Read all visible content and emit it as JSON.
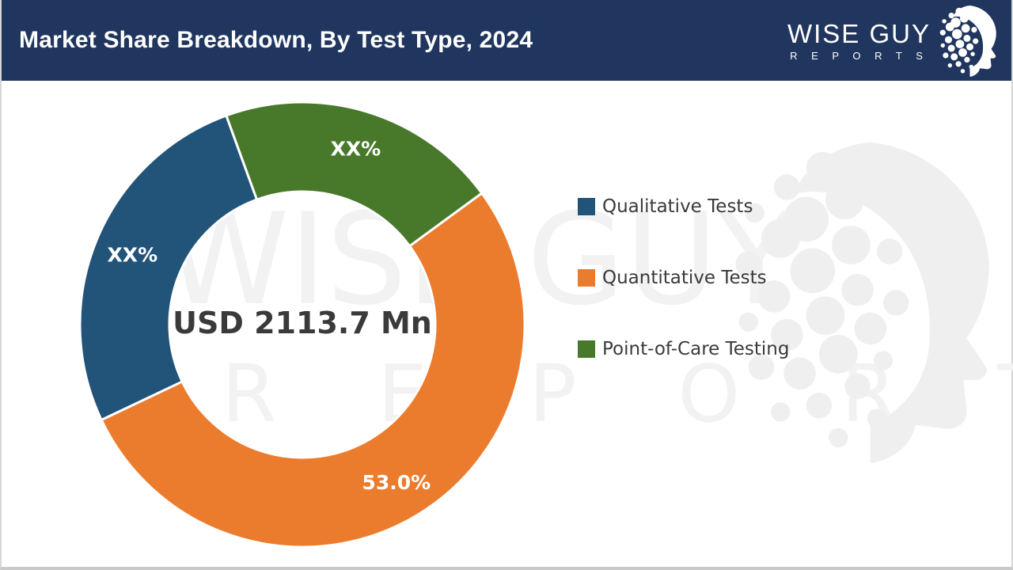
{
  "header": {
    "title": "Market Share Breakdown, By Test Type, 2024",
    "logo": {
      "line1": "WISE GUY",
      "line2": "R E P O R T S"
    }
  },
  "watermark": {
    "line1": "WISE GUY",
    "line2": "R E P O R T S"
  },
  "center_label": "USD 2113.7 Mn",
  "legend": {
    "items": [
      {
        "label": "Qualitative Tests",
        "color": "#225379"
      },
      {
        "label": "Quantitative Tests",
        "color": "#ec7c2d"
      },
      {
        "label": "Point-of-Care Testing",
        "color": "#48782a"
      }
    ]
  },
  "chart_data": {
    "type": "pie",
    "subtype": "donut",
    "title": "Market Share Breakdown, By Test Type, 2024",
    "center_text": "USD 2113.7 Mn",
    "units": "percent share",
    "slices": [
      {
        "name": "Qualitative Tests",
        "value": 26.5,
        "display": "XX%",
        "color": "#225379"
      },
      {
        "name": "Quantitative Tests",
        "value": 53.0,
        "display": "53.0%",
        "color": "#ec7c2d"
      },
      {
        "name": "Point-of-Care Testing",
        "value": 20.5,
        "display": "XX%",
        "color": "#48782a"
      }
    ],
    "start_angle_deg": 110,
    "direction": "ccw",
    "outer_radius": 281,
    "inner_radius": 168,
    "label_radius": 232,
    "separator_color": "#ffffff",
    "legend_position": "right"
  },
  "colors": {
    "header_bg": "#21365f",
    "text_dark": "#3a3a3a",
    "watermark": "#f2f2f2",
    "frame_border": "#c9c9c9"
  }
}
